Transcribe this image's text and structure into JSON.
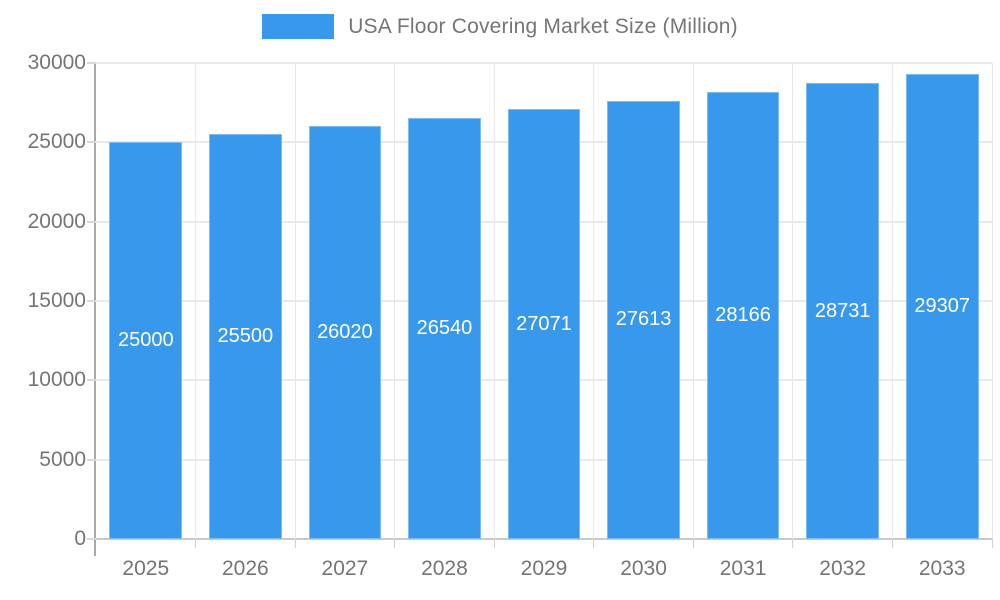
{
  "legend": {
    "label": "USA Floor Covering Market Size (Million)",
    "swatch_color": "#3899EC"
  },
  "chart_data": {
    "type": "bar",
    "title": "USA Floor Covering Market Size (Million)",
    "categories": [
      "2025",
      "2026",
      "2027",
      "2028",
      "2029",
      "2030",
      "2031",
      "2032",
      "2033"
    ],
    "values": [
      25000,
      25500,
      26020,
      26540,
      27071,
      27613,
      28166,
      28731,
      29307
    ],
    "value_labels": [
      "25000",
      "25500",
      "26020",
      "26540",
      "27071",
      "27613",
      "28166",
      "28731",
      "29307"
    ],
    "xlabel": "",
    "ylabel": "",
    "ylim": [
      0,
      30000
    ],
    "yticks": [
      0,
      5000,
      10000,
      15000,
      20000,
      25000,
      30000
    ],
    "ytick_labels": [
      "0",
      "5000",
      "10000",
      "15000",
      "20000",
      "25000",
      "30000"
    ],
    "grid": true,
    "legend_position": "top",
    "bar_color": "#3899EC",
    "value_label_color": "#ffffff",
    "axis_text_color": "#757575",
    "gridline_color": "#e9e9e9",
    "axis_line_color": "#a8a8a8"
  }
}
